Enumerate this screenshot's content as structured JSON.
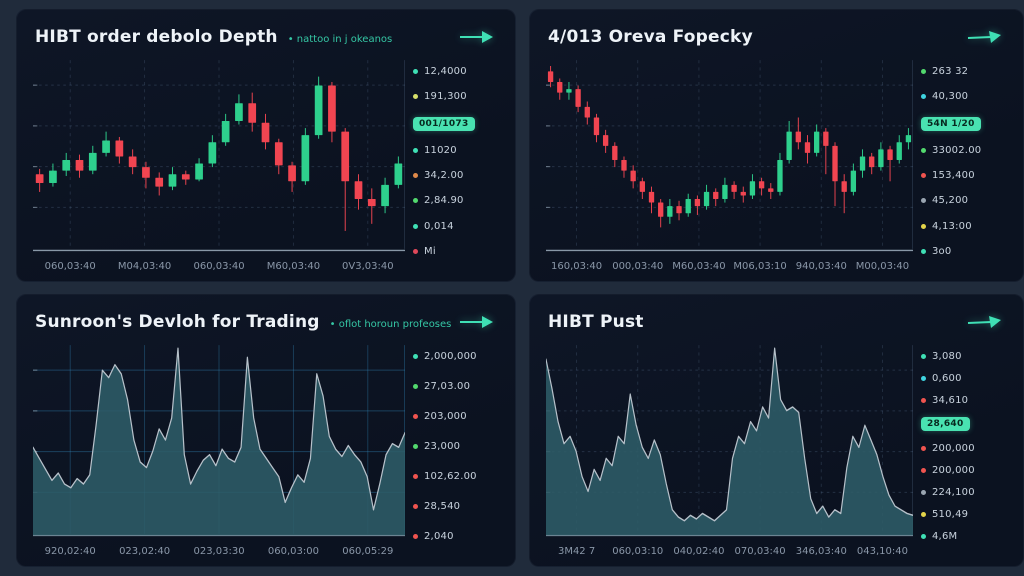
{
  "colors": {
    "accent": "#3fe0b5",
    "candle_up": "#2ed08d",
    "candle_down": "#f14551",
    "axis": "#9fb0bf",
    "grid_dashed": "rgba(125,155,190,0.22)",
    "grid_solid": "rgba(50,135,185,0.40)",
    "area_line": "#b7c1ca",
    "area_fill": "rgba(45,92,104,0.88)",
    "badge_bg": "#49e2b1"
  },
  "panels": [
    {
      "title": "HIBT order debolo Depth",
      "subtitle": "• nattoo in j okeanos",
      "legend": [
        {
          "dot": "#3fe0b5",
          "text": "12,4000"
        },
        {
          "dot": "#d7e06a",
          "text": "191,300"
        },
        {
          "badge": true,
          "text": "001/1073"
        },
        {
          "dot": "#3fe0b5",
          "text": "11020"
        },
        {
          "dot": "#e08a4a",
          "text": "34,2.00"
        },
        {
          "dot": "#52d96e",
          "text": "2,84.90"
        },
        {
          "dot": "#3fe0b5",
          "text": "0,014"
        },
        {
          "dot": "#e0485a",
          "text": "Mi"
        }
      ]
    },
    {
      "title": "4/013 Oreva Fopecky",
      "subtitle": "",
      "legend": [
        {
          "dot": "#52d96e",
          "text": "263 32"
        },
        {
          "dot": "#3fd4e0",
          "text": "40,300"
        },
        {
          "badge": true,
          "text": "54N 1/20"
        },
        {
          "dot": "#52d96e",
          "text": "33002.00"
        },
        {
          "dot": "#f0544f",
          "text": "153,400"
        },
        {
          "dot": "#9aa5b1",
          "text": "45,200"
        },
        {
          "dot": "#e3d44a",
          "text": "4,13:00"
        },
        {
          "dot": "#3fe0b5",
          "text": "3o0"
        }
      ]
    },
    {
      "title": "Sunroon's Devloh for Trading",
      "subtitle": "• oflot horoun profeoses",
      "legend": [
        {
          "dot": "#3fe0b5",
          "text": "2,000,000"
        },
        {
          "dot": "#52d96e",
          "text": "27,03.00"
        },
        {
          "dot": "#f0544f",
          "text": "203,000"
        },
        {
          "dot": "#52d96e",
          "text": "23,000"
        },
        {
          "dot": "#f0544f",
          "text": "102,62.00"
        },
        {
          "dot": "#f0544f",
          "text": "28,540"
        },
        {
          "dot": "#f0544f",
          "text": "2,040"
        }
      ]
    },
    {
      "title": "HIBT Pust",
      "subtitle": "",
      "legend": [
        {
          "dot": "#3fe0b5",
          "text": "3,080"
        },
        {
          "dot": "#3fd4e0",
          "text": "0,600"
        },
        {
          "dot": "#f0544f",
          "text": "34,610"
        },
        {
          "badge": true,
          "text": "28,640"
        },
        {
          "dot": "#f0544f",
          "text": "200,000"
        },
        {
          "dot": "#f0544f",
          "text": "200,000"
        },
        {
          "dot": "#9aa5b1",
          "text": "224,100"
        },
        {
          "dot": "#e3d44a",
          "text": "510,49"
        },
        {
          "dot": "#3fe0b5",
          "text": "4,6M"
        }
      ]
    }
  ],
  "chart_data": [
    {
      "type": "candlestick",
      "title": "HIBT order debolo Depth",
      "xlabel": "",
      "ylabel": "",
      "ylim": [
        0,
        100
      ],
      "grid": "dashed",
      "legend_position": "right",
      "x_labels": [
        "060,03:40",
        "M04,03:40",
        "060,03:40",
        "M60,03:40",
        "0V3,03:40"
      ],
      "candle_format": "[open,high,low,close] on 0-100 relative price scale",
      "candles": [
        [
          38,
          41,
          28,
          33
        ],
        [
          33,
          44,
          31,
          40
        ],
        [
          40,
          50,
          37,
          46
        ],
        [
          46,
          49,
          36,
          40
        ],
        [
          40,
          54,
          38,
          50
        ],
        [
          50,
          62,
          48,
          57
        ],
        [
          57,
          59,
          44,
          48
        ],
        [
          48,
          52,
          38,
          42
        ],
        [
          42,
          45,
          30,
          36
        ],
        [
          36,
          39,
          26,
          31
        ],
        [
          31,
          42,
          29,
          38
        ],
        [
          38,
          40,
          32,
          35
        ],
        [
          35,
          47,
          34,
          44
        ],
        [
          44,
          60,
          42,
          56
        ],
        [
          56,
          72,
          54,
          68
        ],
        [
          68,
          83,
          66,
          78
        ],
        [
          78,
          84,
          62,
          67
        ],
        [
          67,
          72,
          52,
          56
        ],
        [
          56,
          58,
          38,
          43
        ],
        [
          43,
          45,
          28,
          34
        ],
        [
          34,
          64,
          32,
          60
        ],
        [
          60,
          93,
          58,
          88
        ],
        [
          88,
          90,
          56,
          62
        ],
        [
          62,
          64,
          6,
          34
        ],
        [
          34,
          38,
          18,
          24
        ],
        [
          24,
          30,
          10,
          20
        ],
        [
          20,
          36,
          16,
          32
        ],
        [
          32,
          48,
          30,
          44
        ]
      ]
    },
    {
      "type": "candlestick",
      "title": "4/013 Oreva Fopecky",
      "xlabel": "",
      "ylabel": "",
      "ylim": [
        0,
        100
      ],
      "grid": "dashed",
      "legend_position": "right",
      "x_labels": [
        "160,03:40",
        "000,03:40",
        "M60,03:40",
        "M06,03:10",
        "940,03:40",
        "M00,03:40"
      ],
      "candle_format": "[open,high,low,close] on 0-100 relative price scale",
      "candles": [
        [
          96,
          99,
          87,
          90
        ],
        [
          90,
          92,
          80,
          84
        ],
        [
          84,
          90,
          80,
          86
        ],
        [
          86,
          88,
          73,
          76
        ],
        [
          76,
          79,
          66,
          70
        ],
        [
          70,
          72,
          56,
          60
        ],
        [
          60,
          63,
          50,
          54
        ],
        [
          54,
          56,
          42,
          46
        ],
        [
          46,
          48,
          36,
          40
        ],
        [
          40,
          43,
          30,
          34
        ],
        [
          34,
          36,
          24,
          28
        ],
        [
          28,
          31,
          16,
          22
        ],
        [
          22,
          24,
          8,
          14
        ],
        [
          14,
          24,
          10,
          20
        ],
        [
          20,
          23,
          12,
          16
        ],
        [
          16,
          27,
          14,
          24
        ],
        [
          24,
          26,
          15,
          20
        ],
        [
          20,
          32,
          18,
          28
        ],
        [
          28,
          30,
          20,
          24
        ],
        [
          24,
          36,
          22,
          32
        ],
        [
          32,
          34,
          24,
          28
        ],
        [
          28,
          31,
          22,
          26
        ],
        [
          26,
          38,
          24,
          34
        ],
        [
          34,
          36,
          26,
          30
        ],
        [
          30,
          33,
          24,
          28
        ],
        [
          28,
          50,
          26,
          46
        ],
        [
          46,
          68,
          44,
          62
        ],
        [
          62,
          70,
          52,
          56
        ],
        [
          56,
          60,
          44,
          50
        ],
        [
          50,
          66,
          48,
          62
        ],
        [
          62,
          64,
          38,
          54
        ],
        [
          54,
          56,
          20,
          34
        ],
        [
          34,
          38,
          16,
          28
        ],
        [
          28,
          44,
          26,
          40
        ],
        [
          40,
          52,
          36,
          48
        ],
        [
          48,
          50,
          38,
          42
        ],
        [
          42,
          56,
          40,
          52
        ],
        [
          52,
          54,
          34,
          46
        ],
        [
          46,
          60,
          44,
          56
        ],
        [
          56,
          64,
          52,
          60
        ]
      ]
    },
    {
      "type": "area",
      "title": "Sunroon's Devloh for Trading",
      "xlabel": "",
      "ylabel": "",
      "ylim": [
        0,
        100
      ],
      "grid": "solid",
      "legend_position": "right",
      "x_labels": [
        "920,02:40",
        "023,02:40",
        "023,03:30",
        "060,03:00",
        "060,05:29"
      ],
      "values": [
        46,
        40,
        34,
        28,
        32,
        26,
        24,
        29,
        26,
        31,
        58,
        88,
        84,
        91,
        86,
        72,
        50,
        38,
        35,
        44,
        56,
        50,
        62,
        100,
        42,
        26,
        33,
        39,
        42,
        36,
        45,
        40,
        38,
        46,
        95,
        62,
        45,
        40,
        35,
        30,
        16,
        24,
        31,
        27,
        40,
        86,
        74,
        52,
        45,
        41,
        47,
        42,
        38,
        30,
        12,
        26,
        42,
        48,
        46,
        54
      ]
    },
    {
      "type": "area",
      "title": "HIBT Pust",
      "xlabel": "",
      "ylabel": "",
      "ylim": [
        0,
        100
      ],
      "grid": "dashed",
      "legend_position": "right",
      "x_labels": [
        "3M42 7",
        "060,03:10",
        "040,02:40",
        "070,03:40",
        "346,03:40",
        "043,10:40"
      ],
      "values": [
        94,
        78,
        60,
        48,
        52,
        44,
        30,
        22,
        34,
        28,
        40,
        36,
        52,
        48,
        75,
        58,
        46,
        40,
        50,
        42,
        26,
        12,
        8,
        6,
        9,
        7,
        10,
        8,
        6,
        9,
        12,
        40,
        52,
        48,
        60,
        55,
        68,
        62,
        100,
        72,
        66,
        68,
        65,
        40,
        18,
        10,
        14,
        8,
        12,
        10,
        35,
        52,
        46,
        58,
        50,
        42,
        30,
        20,
        14,
        12,
        10,
        9
      ]
    }
  ]
}
